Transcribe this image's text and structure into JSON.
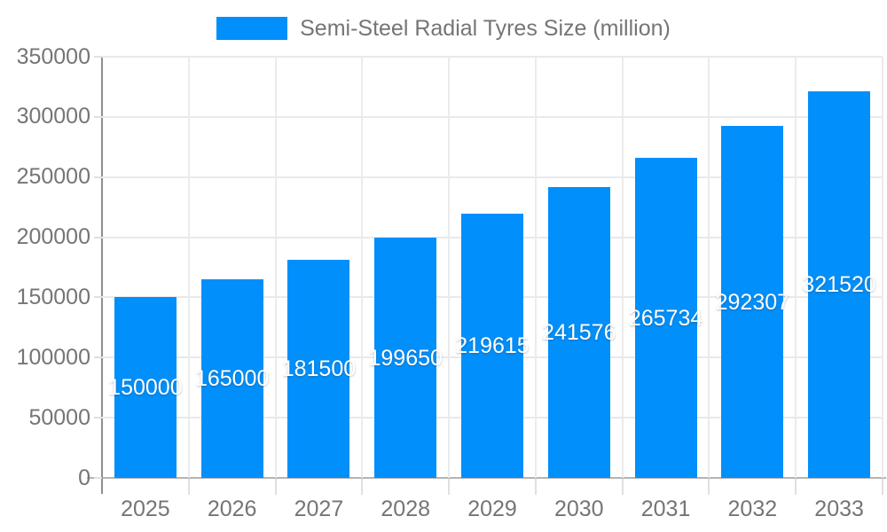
{
  "legend": {
    "label": "Semi-Steel Radial Tyres Size (million)"
  },
  "colors": {
    "bar": "#008FFB",
    "axis_text": "#757575",
    "grid": "#e9e9e9",
    "x_axis_line": "#b4b4b4",
    "y_axis_line": "#8f8f8f",
    "data_label_text": "#ffffff"
  },
  "chart_data": {
    "type": "bar",
    "title": "Semi-Steel Radial Tyres Size (million)",
    "xlabel": "",
    "ylabel": "",
    "categories": [
      "2025",
      "2026",
      "2027",
      "2028",
      "2029",
      "2030",
      "2031",
      "2032",
      "2033"
    ],
    "series": [
      {
        "name": "Semi-Steel Radial Tyres Size (million)",
        "values": [
          150000,
          165000,
          181500,
          199650,
          219615,
          241576,
          265734,
          292307,
          321520
        ]
      }
    ],
    "data_labels": [
      "150000",
      "165000",
      "181500",
      "199650",
      "219615",
      "241576",
      "265734",
      "292307",
      "321520"
    ],
    "ylim": [
      0,
      350000
    ],
    "ytick_step": 50000,
    "ytick_labels": [
      "0",
      "50000",
      "100000",
      "150000",
      "200000",
      "250000",
      "300000",
      "350000"
    ],
    "grid": true,
    "legend_position": "top",
    "bar_color": "#008FFB"
  }
}
